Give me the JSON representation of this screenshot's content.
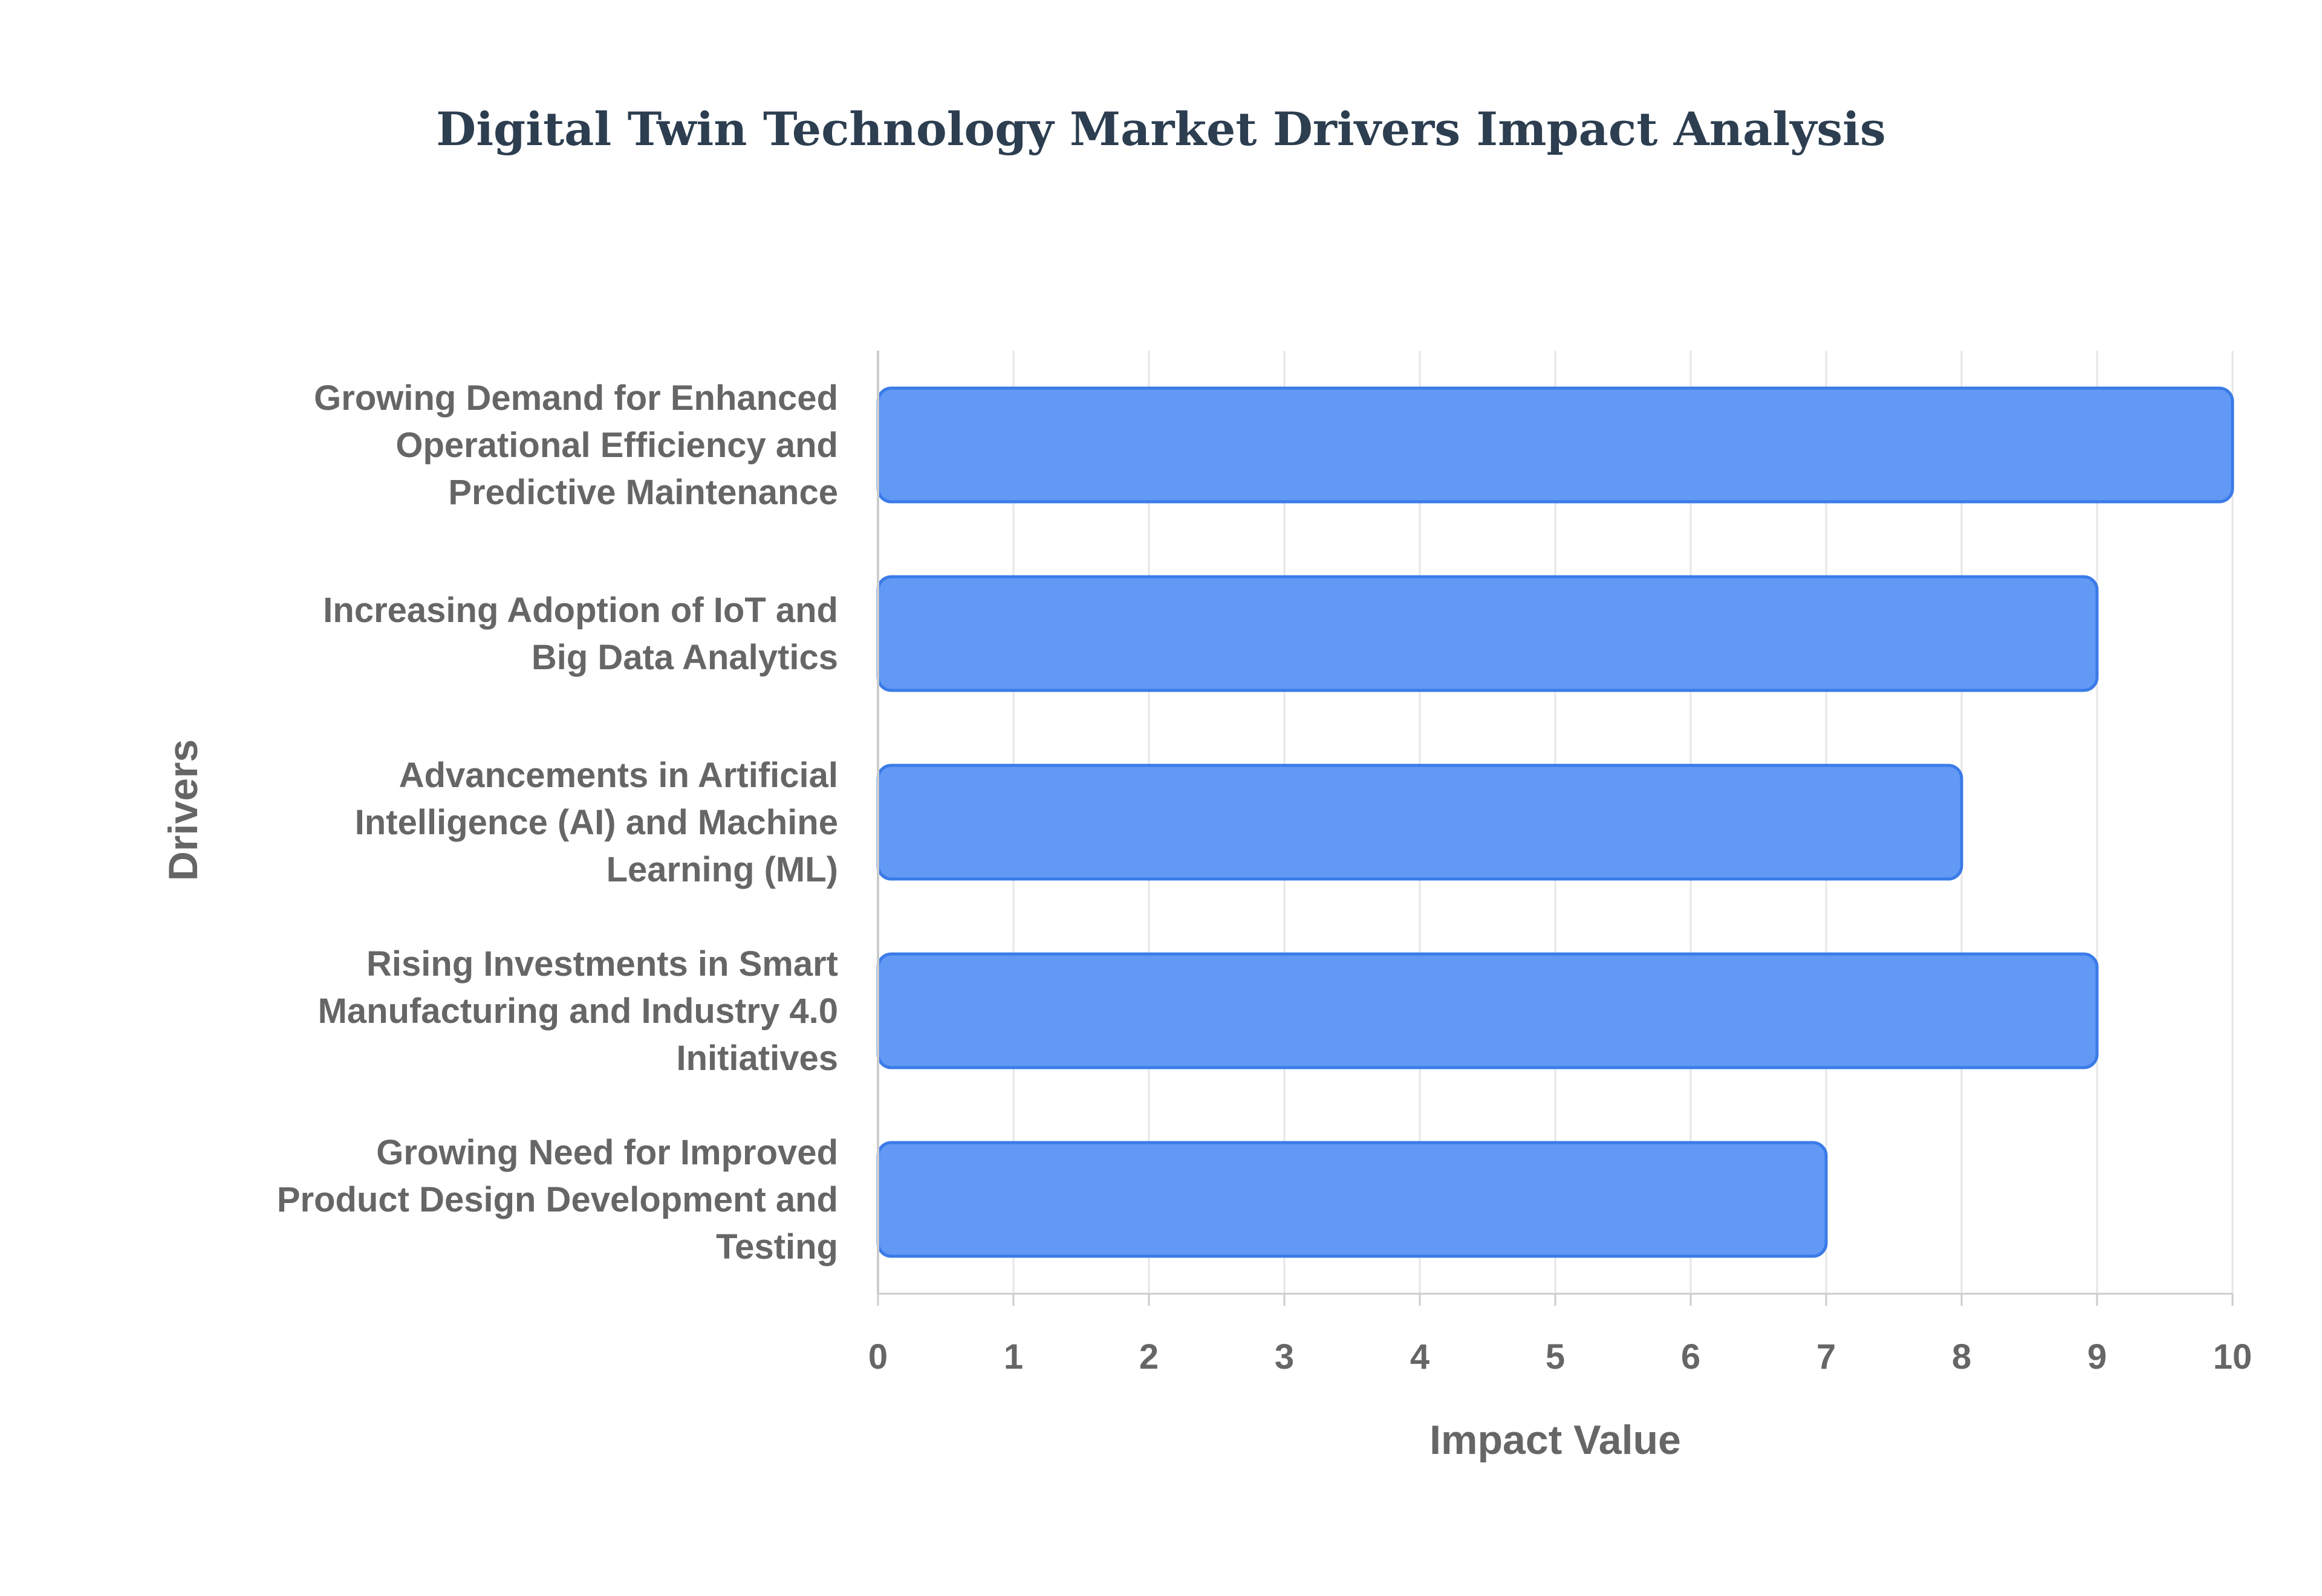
{
  "chart_data": {
    "type": "bar",
    "orientation": "horizontal",
    "title": "Digital Twin Technology Market Drivers Impact Analysis",
    "xlabel": "Impact Value",
    "ylabel": "Drivers",
    "xlim": [
      0,
      10
    ],
    "x_ticks": [
      "0",
      "1",
      "2",
      "3",
      "4",
      "5",
      "6",
      "7",
      "8",
      "9",
      "10"
    ],
    "grid": true,
    "legend": "none",
    "categories": [
      [
        "Growing Demand for Enhanced",
        "Operational Efficiency and",
        "Predictive Maintenance"
      ],
      [
        "Increasing Adoption of IoT and",
        "Big Data Analytics"
      ],
      [
        "Advancements in Artificial",
        "Intelligence (AI) and Machine",
        "Learning (ML)"
      ],
      [
        "Rising Investments in Smart",
        "Manufacturing and Industry 4.0",
        "Initiatives"
      ],
      [
        "Growing Need for Improved",
        "Product Design Development and",
        "Testing"
      ]
    ],
    "values": [
      10,
      9,
      8,
      9,
      7
    ],
    "colors": {
      "bar_fill": "#6199f5",
      "bar_stroke": "#3b7be8",
      "grid": "#e6e6e6",
      "axis": "#cccccc",
      "text": "#666666",
      "title": "#2c3e50"
    }
  }
}
